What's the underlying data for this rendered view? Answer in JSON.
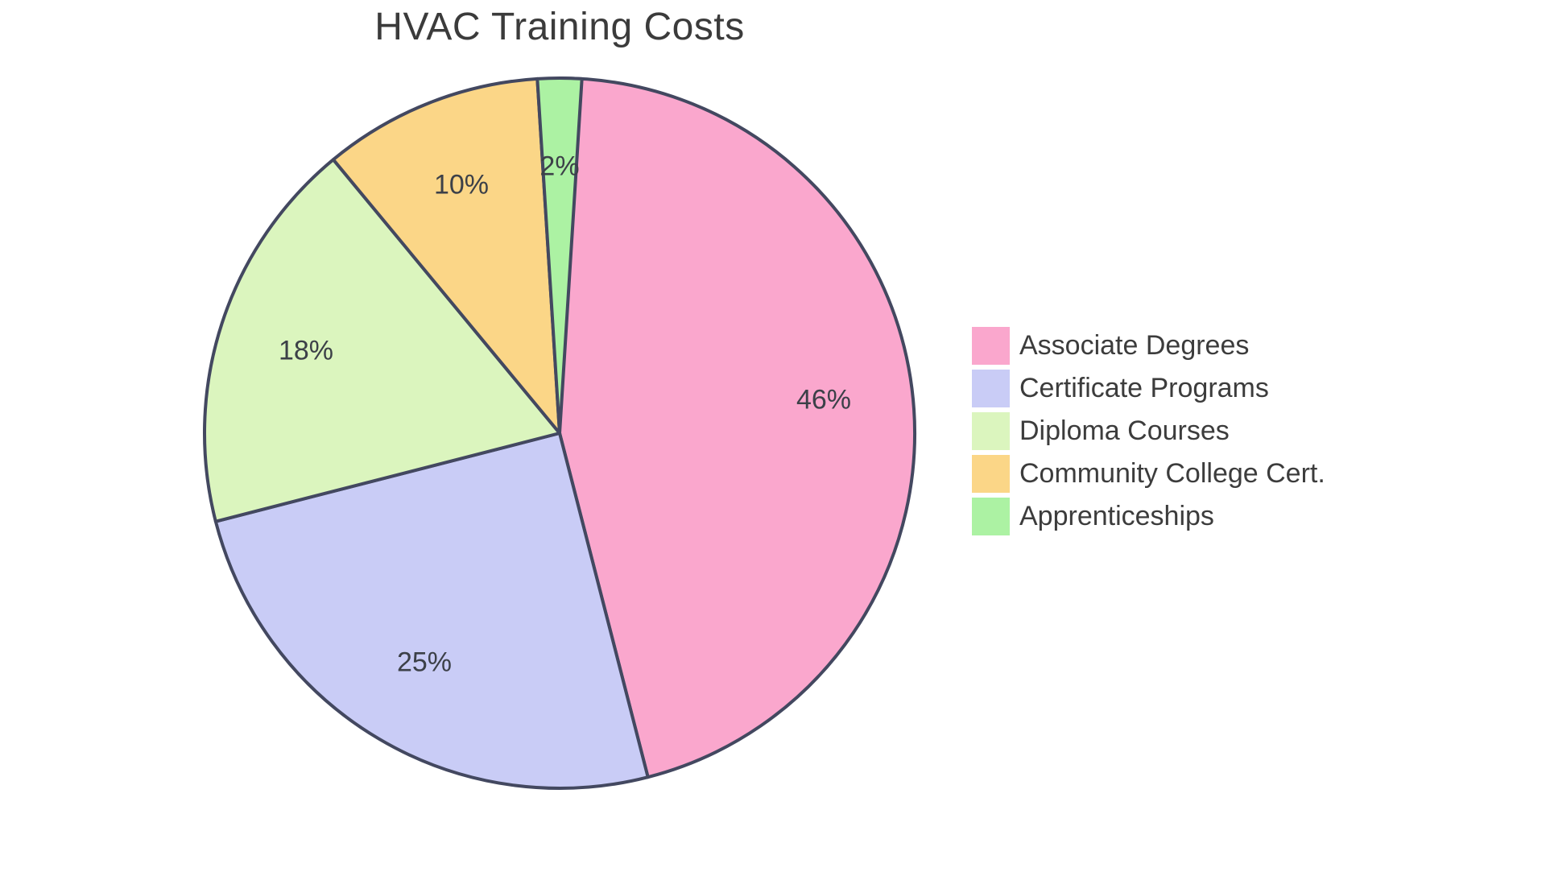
{
  "chart_data": {
    "type": "pie",
    "title": "HVAC Training Costs",
    "labels": [
      "Associate Degrees",
      "Certificate Programs",
      "Diploma Courses",
      "Community College Cert.",
      "Apprenticeships"
    ],
    "values": [
      46,
      25,
      18,
      10,
      2
    ],
    "slice_labels": [
      "46%",
      "25%",
      "18%",
      "10%",
      "2%"
    ],
    "colors": [
      "#FAA7CD",
      "#C9CCF6",
      "#DBF5BE",
      "#FBD687",
      "#ACF2A3"
    ],
    "outline_color": "#434860",
    "title_color": "#3B3B3B",
    "label_color": "#3C4048",
    "background_color": "#FFFFFF",
    "start_angle_deg": 0,
    "direction": "clockwise",
    "legend_position": "right",
    "grid": false
  }
}
